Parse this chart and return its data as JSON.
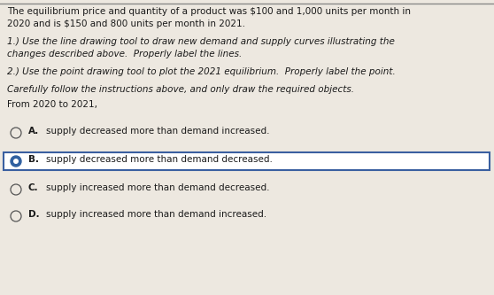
{
  "background_color": "#ede8e0",
  "text_color": "#1a1a1a",
  "title_lines": [
    "The equilibrium price and quantity of a product was $100 and 1,000 units per month in",
    "2020 and is $150 and 800 units per month in 2021."
  ],
  "instruction1_lines": [
    "1.) Use the line drawing tool to draw new demand and supply curves illustrating the",
    "changes described above.  Properly label the lines."
  ],
  "instruction2": "2.) Use the point drawing tool to plot the 2021 equilibrium.  Properly label the point.",
  "instruction3": "Carefully follow the instructions above, and only draw the required objects.",
  "from_label": "From 2020 to 2021,",
  "options": [
    {
      "label": "A.",
      "text": "supply decreased more than demand increased.",
      "selected": false
    },
    {
      "label": "B.",
      "text": "supply decreased more than demand decreased.",
      "selected": true
    },
    {
      "label": "C.",
      "text": "supply increased more than demand decreased.",
      "selected": false
    },
    {
      "label": "D.",
      "text": "supply increased more than demand increased.",
      "selected": false
    }
  ],
  "selected_option_index": 1,
  "box_color": "#3a5fa0",
  "radio_fill_color": "#3060a0",
  "font_size_main": 7.5,
  "font_size_italic": 7.5,
  "fig_width": 5.58,
  "fig_height": 3.33,
  "dpi": 100
}
